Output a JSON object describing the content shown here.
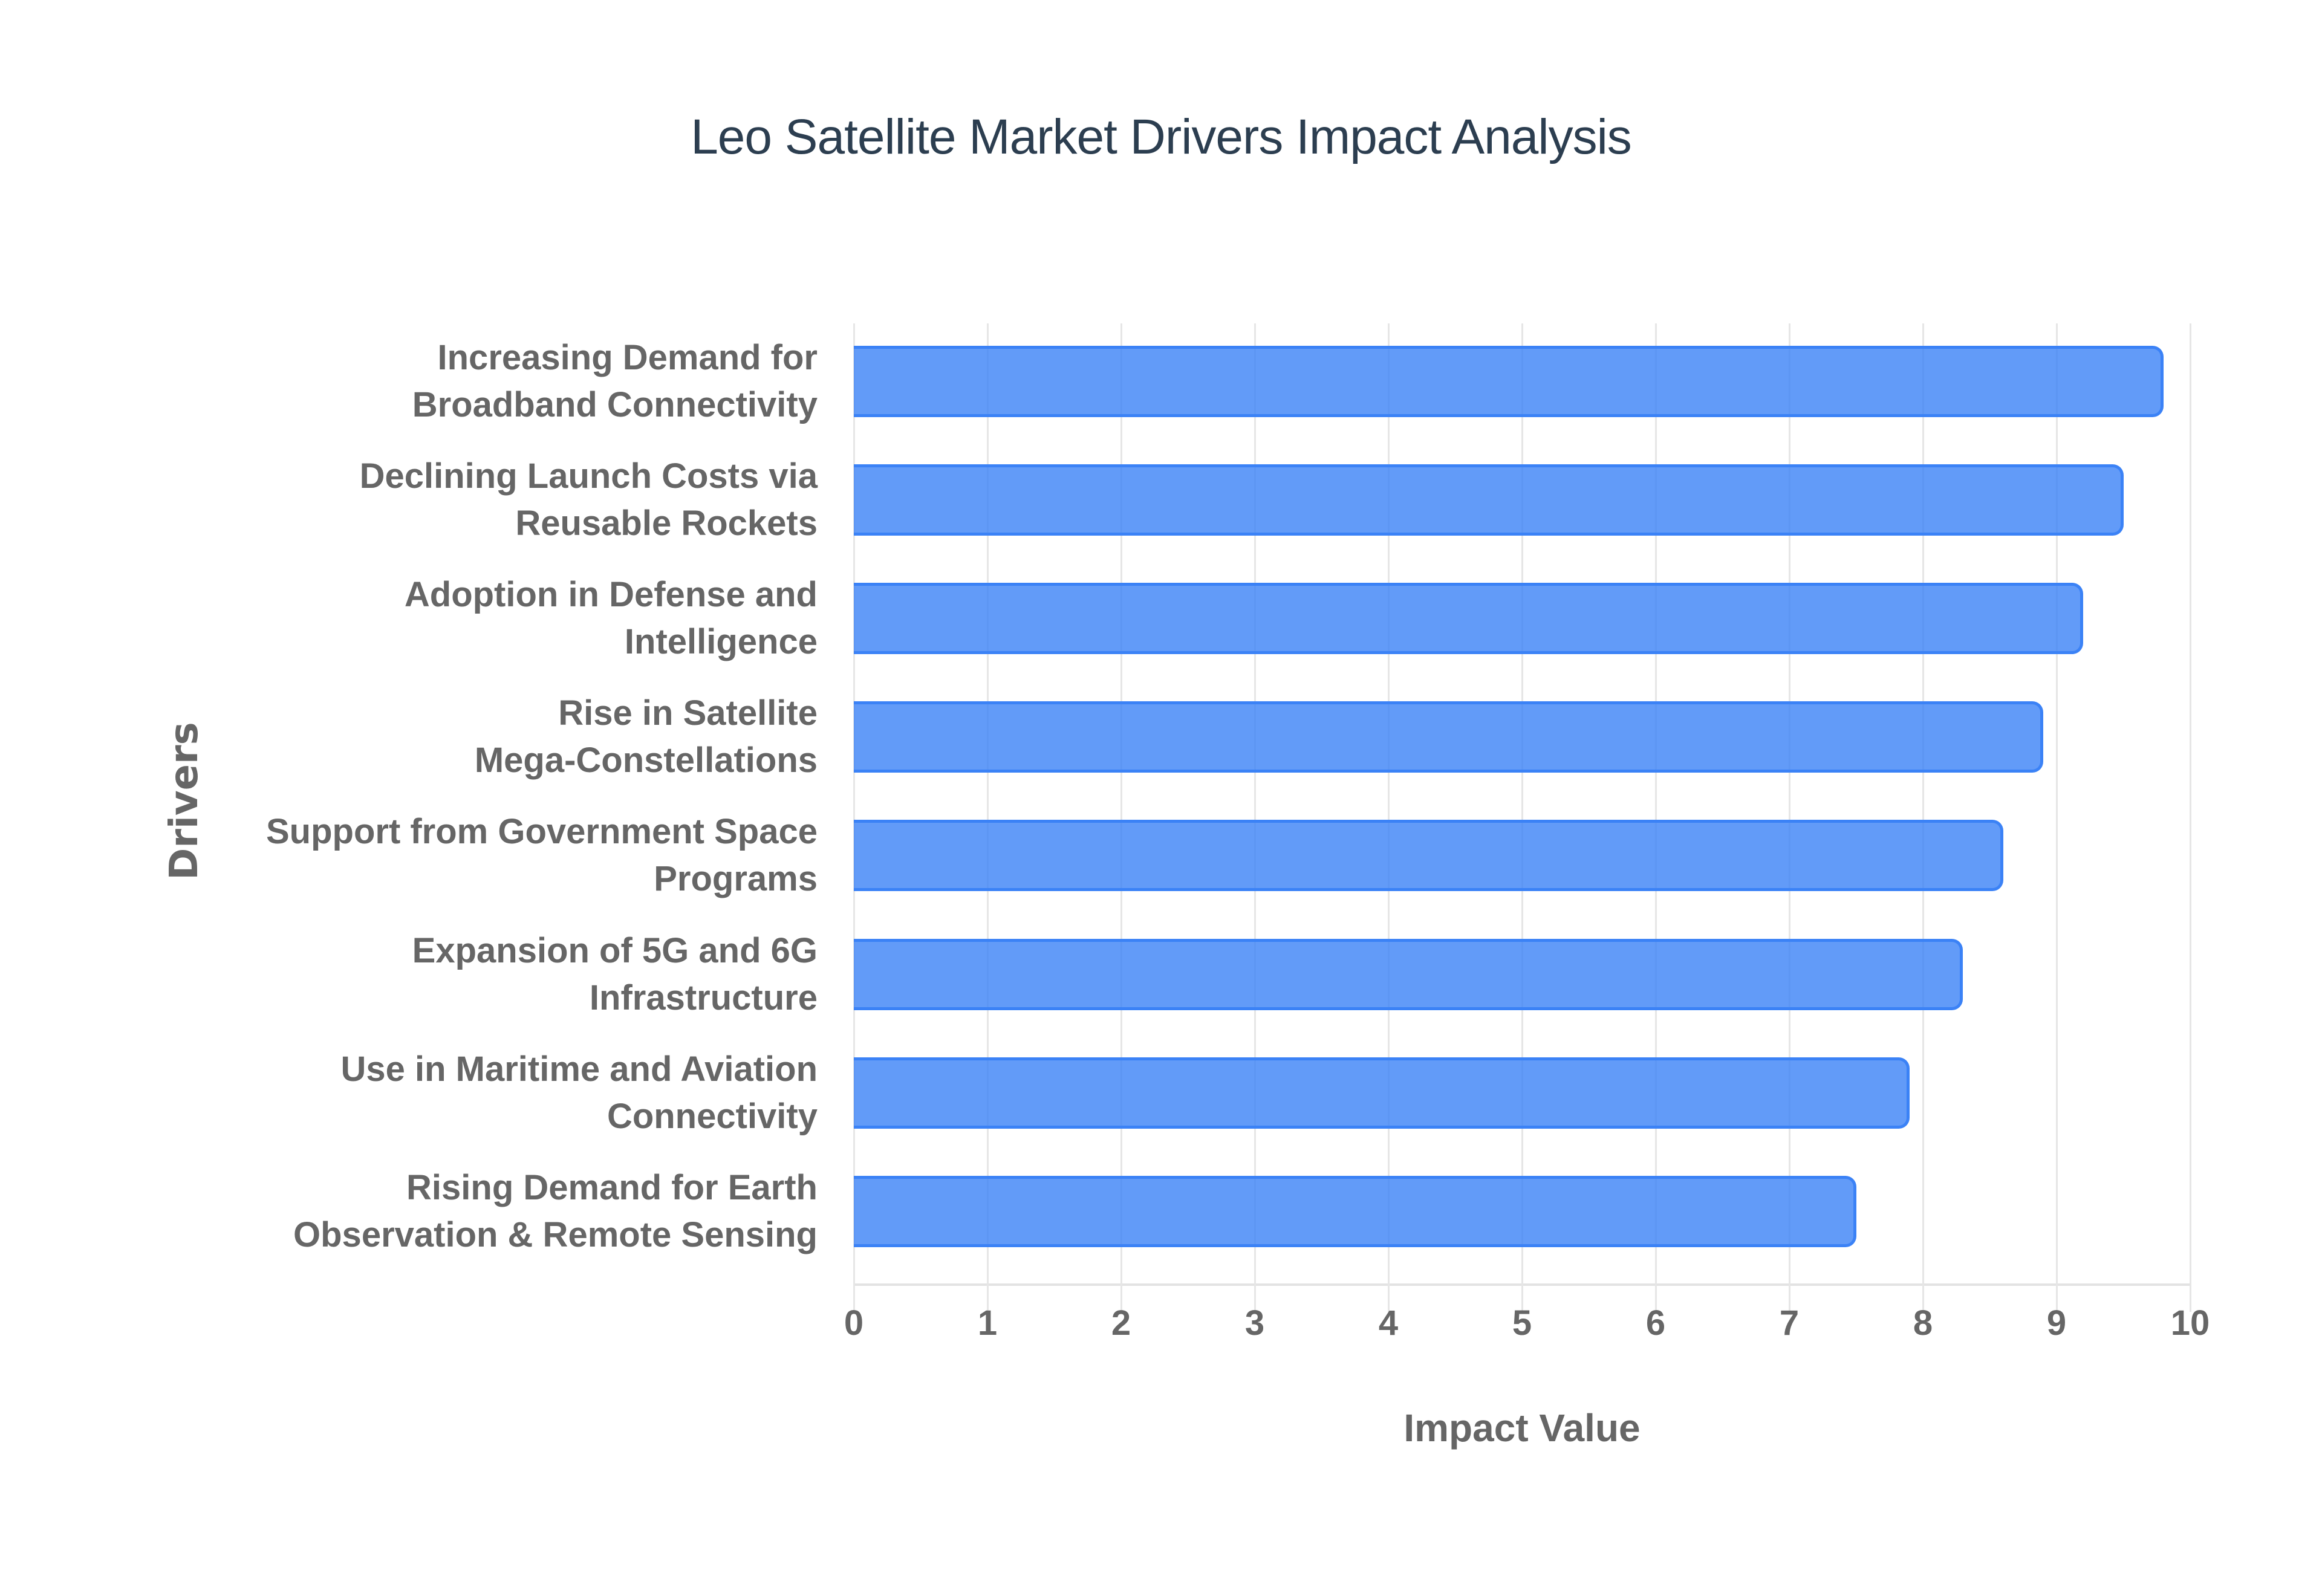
{
  "title": "Leo Satellite Market Drivers Impact Analysis",
  "x_axis": {
    "title": "Impact Value",
    "ticks": [
      "0",
      "1",
      "2",
      "3",
      "4",
      "5",
      "6",
      "7",
      "8",
      "9",
      "10"
    ]
  },
  "y_axis": {
    "title": "Drivers"
  },
  "colors": {
    "bar_fill": "#6199f5",
    "bar_border": "#3b82f6",
    "title": "#2c3e50",
    "axis_text": "#666666",
    "grid": "#e6e6e6"
  },
  "categories": [
    {
      "line1": "Increasing Demand for",
      "line2": "Broadband Connectivity"
    },
    {
      "line1": "Declining Launch Costs via",
      "line2": "Reusable Rockets"
    },
    {
      "line1": "Adoption in Defense and",
      "line2": "Intelligence"
    },
    {
      "line1": "Rise in Satellite",
      "line2": "Mega-Constellations"
    },
    {
      "line1": "Support from Government Space",
      "line2": "Programs"
    },
    {
      "line1": "Expansion of 5G and 6G",
      "line2": "Infrastructure"
    },
    {
      "line1": "Use in Maritime and Aviation",
      "line2": "Connectivity"
    },
    {
      "line1": "Rising Demand for Earth",
      "line2": "Observation & Remote Sensing"
    }
  ],
  "chart_data": {
    "type": "bar",
    "orientation": "horizontal",
    "title": "Leo Satellite Market Drivers Impact Analysis",
    "xlabel": "Impact Value",
    "ylabel": "Drivers",
    "xlim": [
      0,
      10
    ],
    "grid": true,
    "legend": null,
    "categories": [
      "Increasing Demand for Broadband Connectivity",
      "Declining Launch Costs via Reusable Rockets",
      "Adoption in Defense and Intelligence",
      "Rise in Satellite Mega-Constellations",
      "Support from Government Space Programs",
      "Expansion of 5G and 6G Infrastructure",
      "Use in Maritime and Aviation Connectivity",
      "Rising Demand for Earth Observation & Remote Sensing"
    ],
    "values": [
      9.8,
      9.5,
      9.2,
      8.9,
      8.6,
      8.3,
      7.9,
      7.5
    ]
  }
}
